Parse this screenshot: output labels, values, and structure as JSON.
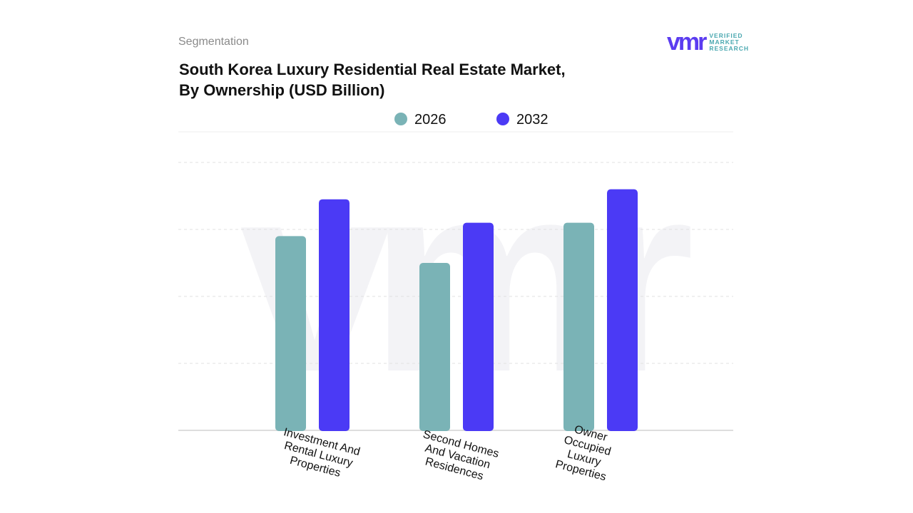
{
  "header": {
    "segment_label": "Segmentation",
    "title_line1": "South Korea Luxury Residential Real Estate Market,",
    "title_line2": "By Ownership (USD Billion)"
  },
  "logo": {
    "mark": "vmr",
    "line1": "VERIFIED",
    "line2": "MARKET",
    "line3": "RESEARCH"
  },
  "chart_data": {
    "type": "bar",
    "title": "South Korea Luxury Residential Real Estate Market, By Ownership (USD Billion)",
    "categories": [
      [
        "Investment  And",
        "Rental Luxury",
        "Properties"
      ],
      [
        "Second Homes",
        "And Vacation",
        "Residences"
      ],
      [
        "Owner",
        "Occupied",
        "Luxury",
        "Properties"
      ]
    ],
    "series": [
      {
        "name": "2026",
        "color": "#7ab3b6",
        "values": [
          2.9,
          2.5,
          3.1
        ]
      },
      {
        "name": "2032",
        "color": "#4b3af5",
        "values": [
          3.45,
          3.1,
          3.6
        ]
      }
    ],
    "ylim": [
      0,
      4
    ],
    "grid": true,
    "legend": "top-center",
    "y_tick_labels_shown": false
  }
}
